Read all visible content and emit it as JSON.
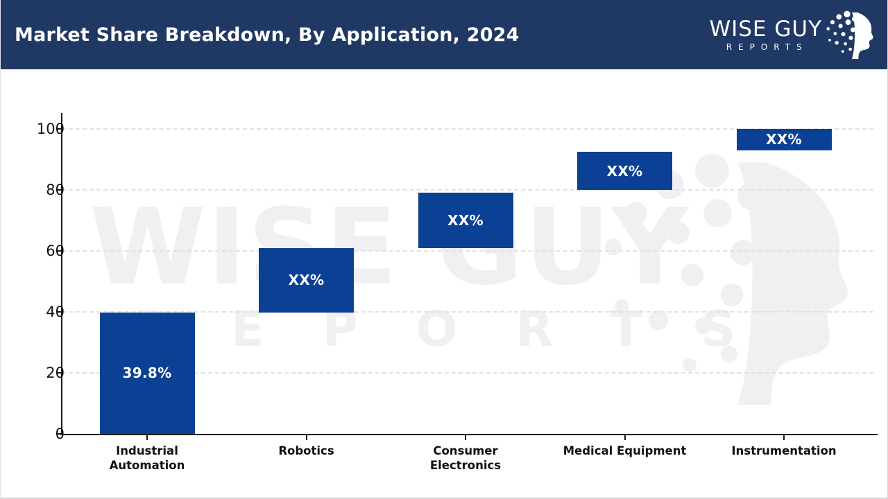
{
  "header": {
    "title": "Market Share Breakdown, By Application, 2024",
    "logo": {
      "line1": "WISE GUY",
      "line2": "REPORTS"
    }
  },
  "watermark": {
    "line1": "WISE GUY",
    "line2": "REPORTS"
  },
  "colors": {
    "header_bg": "#203864",
    "bar": "#0b4194",
    "bar_label": "#ffffff",
    "gridline": "#e1e1e3",
    "axis": "#1a1a1a",
    "watermark": "#f0f0f2"
  },
  "chart_data": {
    "type": "bar",
    "variant": "waterfall-floating-bars",
    "title": "Market Share Breakdown, By Application, 2024",
    "categories": [
      "Industrial Automation",
      "Robotics",
      "Consumer Electronics",
      "Medical Equipment",
      "Instrumentation"
    ],
    "category_label_lines": [
      [
        "Industrial",
        "Automation"
      ],
      [
        "Robotics"
      ],
      [
        "Consumer",
        "Electronics"
      ],
      [
        "Medical Equipment"
      ],
      [
        "Instrumentation"
      ]
    ],
    "segments": [
      {
        "category": "Industrial Automation",
        "start": 0,
        "end": 39.8,
        "label": "39.8%"
      },
      {
        "category": "Robotics",
        "start": 39.8,
        "end": 61,
        "label": "XX%"
      },
      {
        "category": "Consumer Electronics",
        "start": 61,
        "end": 79,
        "label": "XX%"
      },
      {
        "category": "Medical Equipment",
        "start": 80,
        "end": 92.5,
        "label": "XX%"
      },
      {
        "category": "Instrumentation",
        "start": 93,
        "end": 100,
        "label": "XX%"
      }
    ],
    "yticks": [
      0,
      20,
      40,
      60,
      80,
      100
    ],
    "ylim": [
      0,
      105
    ],
    "xlabel": "",
    "ylabel": "",
    "grid": "horizontal-dashed",
    "legend": "none"
  }
}
